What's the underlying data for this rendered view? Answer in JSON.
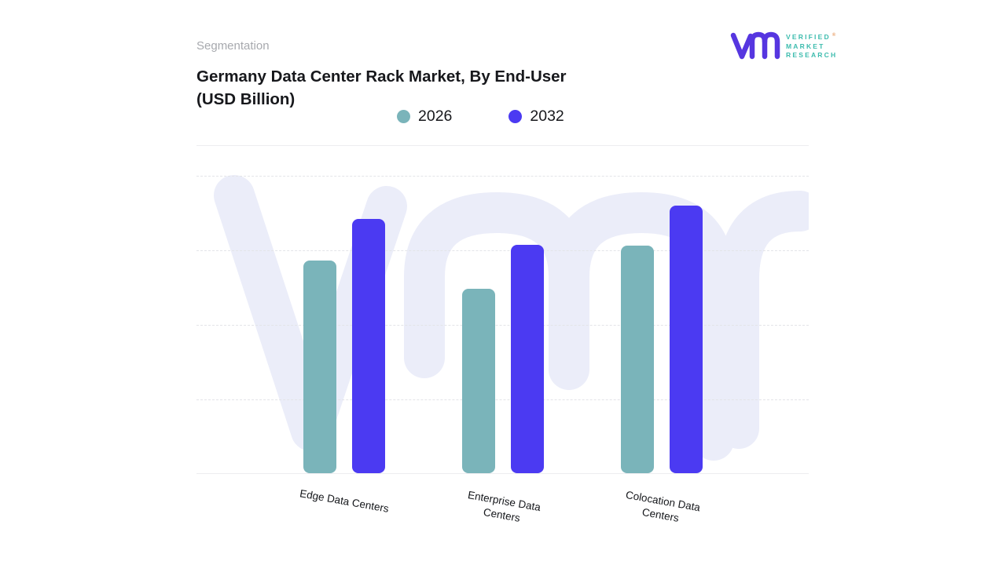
{
  "header": {
    "eyebrow": "Segmentation",
    "title_line1": "Germany Data Center Rack Market, By End-User",
    "title_line2": "(USD Billion)"
  },
  "logo": {
    "mark": "vmr-monogram",
    "line1": "VERIFIED",
    "line2": "MARKET",
    "line3": "RESEARCH",
    "registered_symbol": "®",
    "mark_color": "#5636e0",
    "text_color": "#3dbcae"
  },
  "chart_data": {
    "type": "bar",
    "title": "Germany Data Center Rack Market, By End-User (USD Billion)",
    "categories": [
      "Edge Data Centers",
      "Enterprise Data Centers",
      "Colocation Data Centers"
    ],
    "series": [
      {
        "name": "2026",
        "color": "#7ab4ba",
        "values": [
          2.85,
          2.47,
          3.05
        ]
      },
      {
        "name": "2032",
        "color": "#4b3af2",
        "values": [
          3.41,
          3.06,
          3.59
        ]
      }
    ],
    "xlabel": "",
    "ylabel": "",
    "y_axis_visible": false,
    "note": "y-axis unlabeled; values estimated in gridline units (1 unit = 1 dashed gridline interval above baseline)",
    "ylim": [
      0,
      4.4
    ],
    "gridlines": "dashed horizontal",
    "legend_position": "top",
    "watermark": "vmr-logo-light",
    "colors": {
      "grid": "#e3e4e8",
      "baseline": "#ededf0",
      "watermark": "#ebedf9",
      "title_text": "#17181c",
      "eyebrow_text": "#a7a9ae"
    }
  }
}
